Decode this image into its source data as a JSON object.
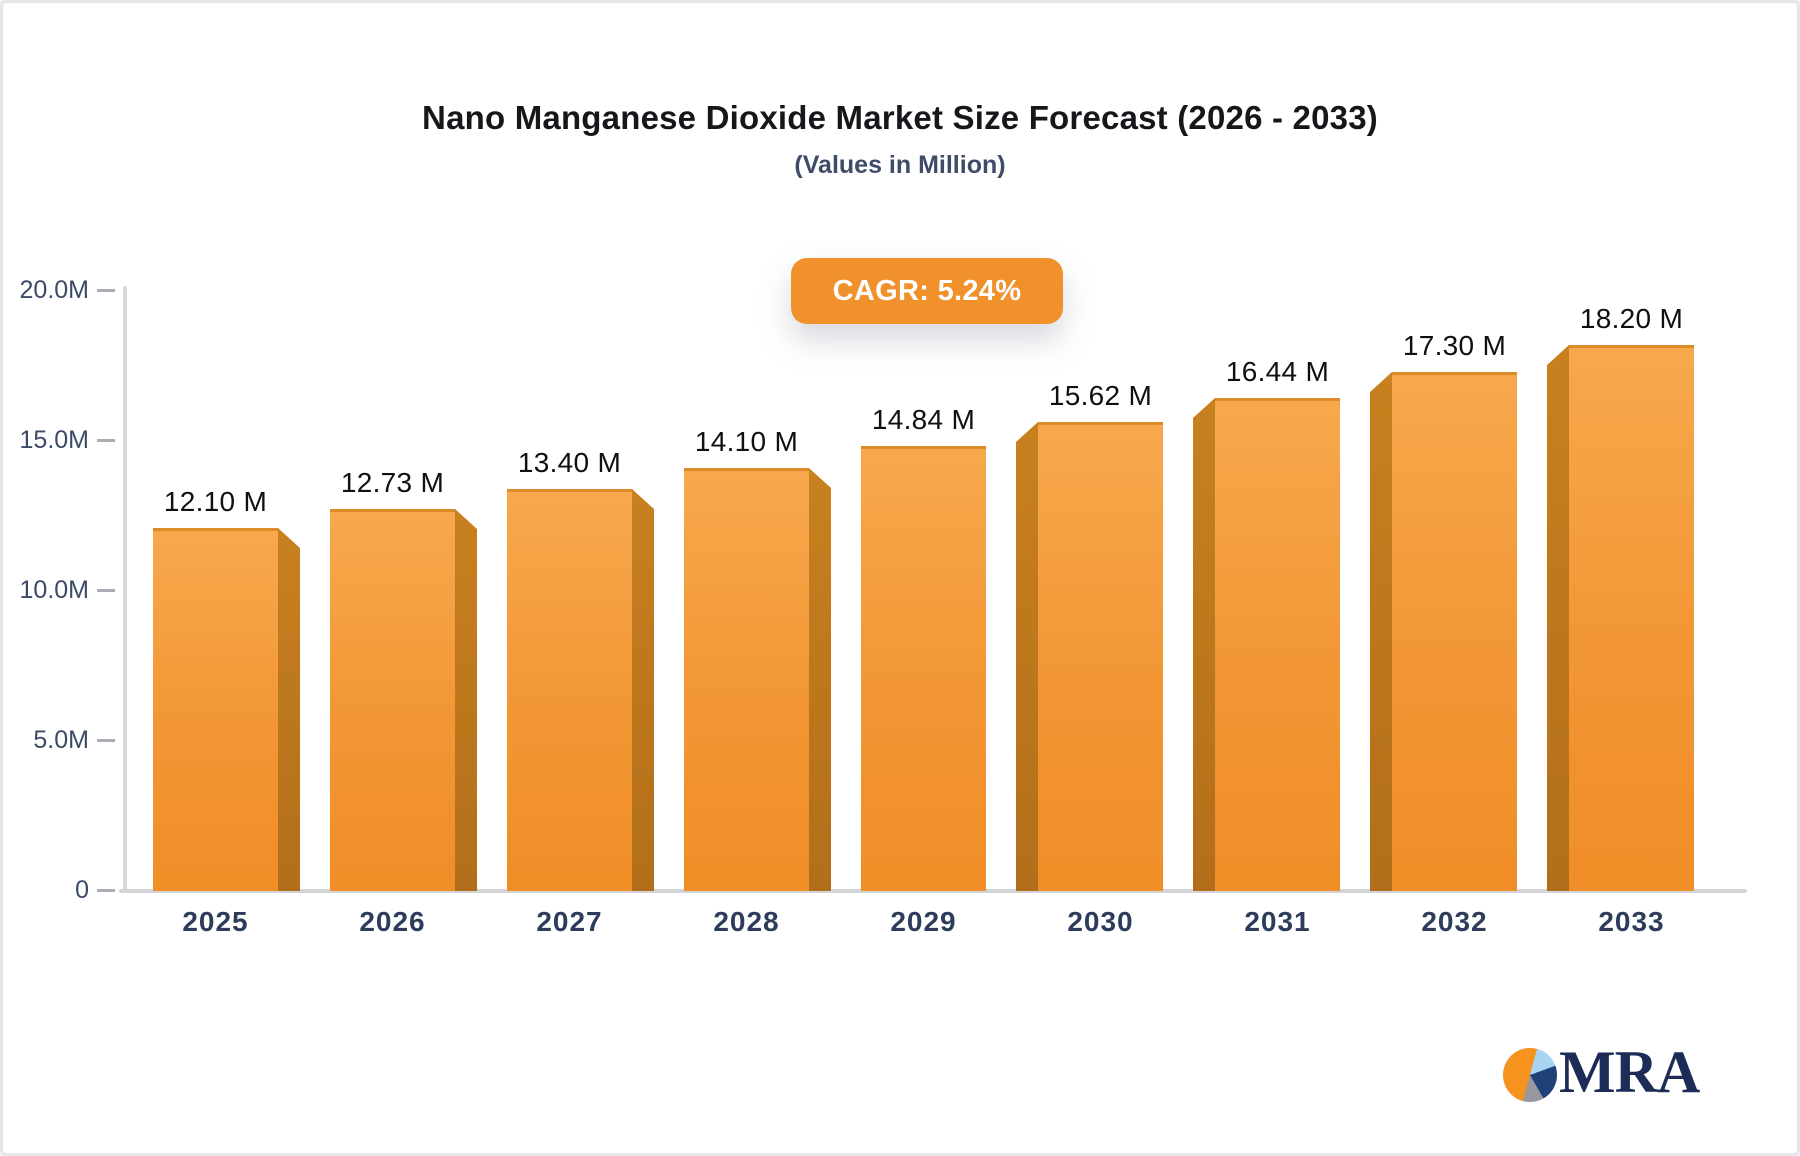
{
  "header": {
    "title": "Nano Manganese Dioxide Market Size Forecast (2026 - 2033)",
    "subtitle": "(Values in Million)"
  },
  "badge": {
    "label": "CAGR: 5.24%",
    "bg_color": "#F0912C",
    "text_color": "#FFFFFF"
  },
  "chart_data": {
    "type": "bar",
    "title": "Nano Manganese Dioxide Market Size Forecast (2026 - 2033)",
    "subtitle": "(Values in Million)",
    "cagr_annotation": "CAGR: 5.24%",
    "categories": [
      "2025",
      "2026",
      "2027",
      "2028",
      "2029",
      "2030",
      "2031",
      "2032",
      "2033"
    ],
    "values": [
      12.1,
      12.73,
      13.4,
      14.1,
      14.84,
      15.62,
      16.44,
      17.3,
      18.2
    ],
    "value_labels": [
      "12.10 M",
      "12.73 M",
      "13.40 M",
      "14.10 M",
      "14.84 M",
      "15.62 M",
      "16.44 M",
      "17.30 M",
      "18.20 M"
    ],
    "xlabel": "",
    "ylabel": "",
    "ylim": [
      0,
      20
    ],
    "yticks": [
      {
        "value": 0,
        "label": "0"
      },
      {
        "value": 5,
        "label": "5.0M"
      },
      {
        "value": 10,
        "label": "10.0M"
      },
      {
        "value": 15,
        "label": "15.0M"
      },
      {
        "value": 20,
        "label": "20.0M"
      }
    ],
    "grid": false,
    "legend": false,
    "bar_style": "3d-perspective",
    "colors": {
      "bar_front_top": "#F7A84D",
      "bar_front_bottom": "#F08E27",
      "bar_side": "#BC7520",
      "axis_line": "#D5D6D9",
      "tick_label": "#3C4A66",
      "category_label": "#2E3C5B",
      "value_label": "#0F1013"
    }
  },
  "logo": {
    "text": "MRA",
    "icon": "pie-chart-icon",
    "pie_colors": {
      "orange": "#F6921E",
      "light_blue": "#A6D4F2",
      "navy": "#1E4178",
      "gray": "#98979F"
    },
    "text_color": "#1C2C56"
  }
}
